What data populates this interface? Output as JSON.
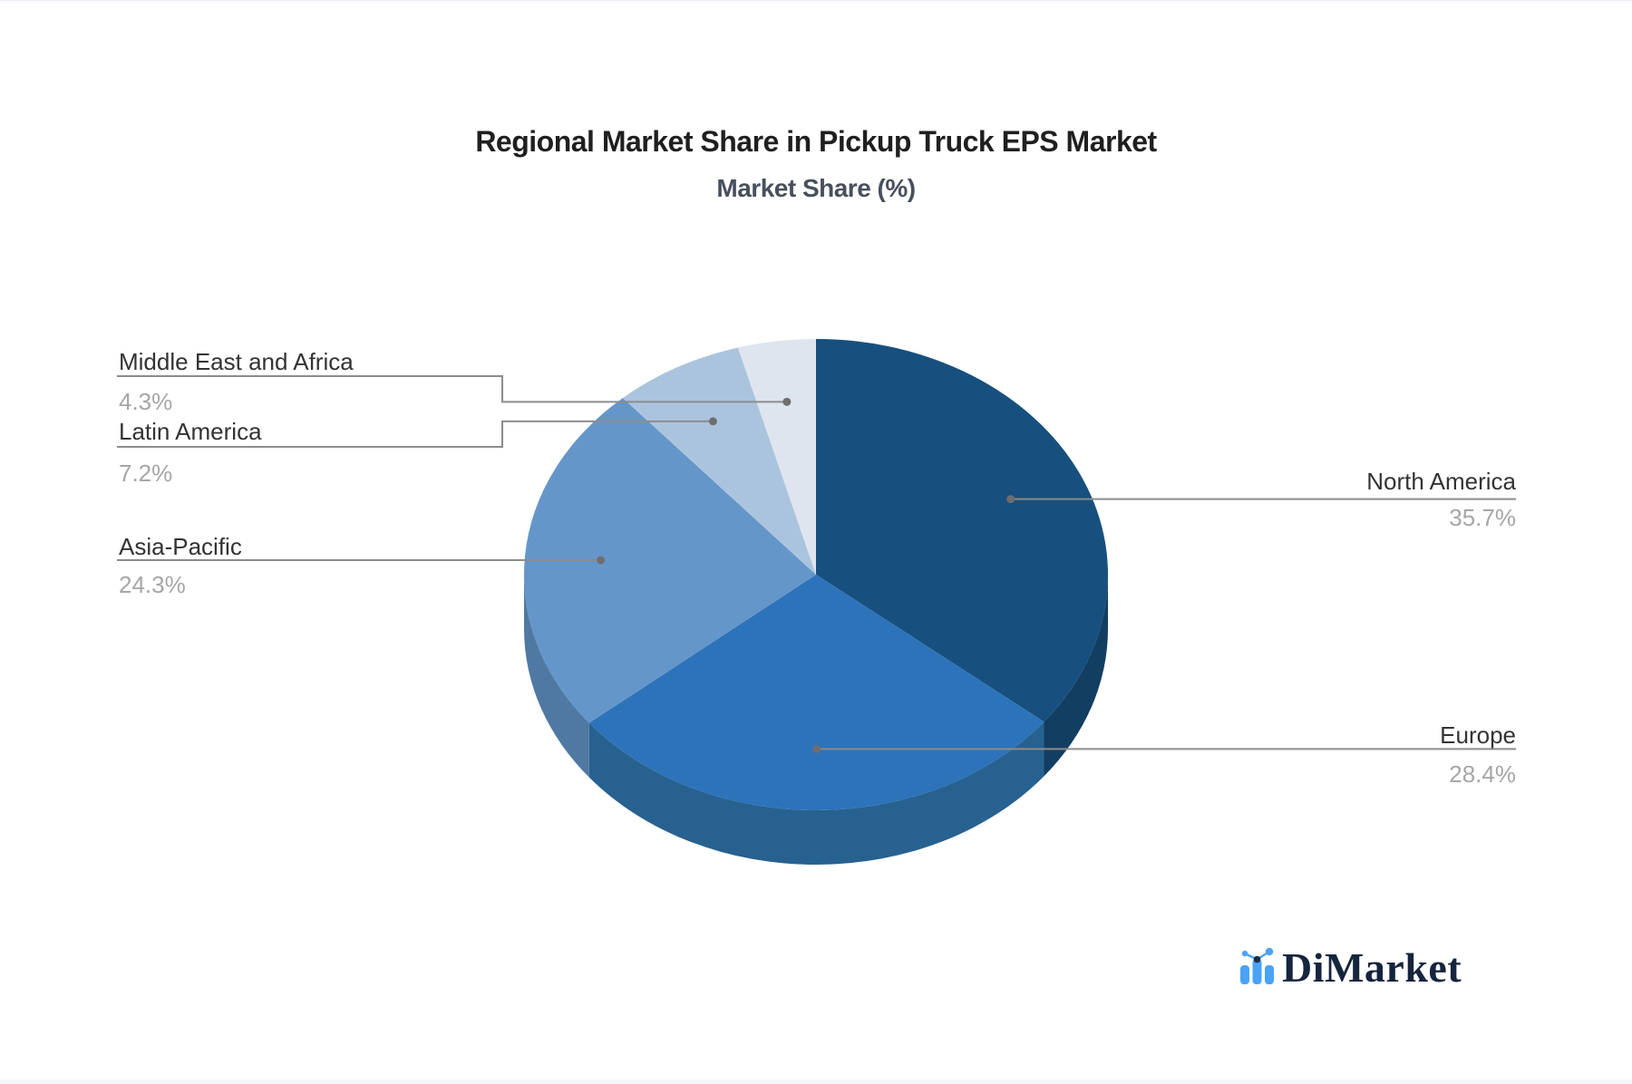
{
  "chart_data": {
    "type": "pie",
    "style": "3d",
    "title": "Regional Market Share in Pickup Truck EPS Market",
    "subtitle": "Market Share (%)",
    "unit": "%",
    "legend": "none",
    "start_angle_deg": 90,
    "direction": "clockwise",
    "label_format": "name above line, percent below line",
    "slices": [
      {
        "label": "North America",
        "value": 35.7,
        "pct_label": "35.7%",
        "color": "#17507e",
        "rim_color": "#123e62",
        "label_side": "right"
      },
      {
        "label": "Europe",
        "value": 28.4,
        "pct_label": "28.4%",
        "color": "#2d73ba",
        "rim_color": "#27618f",
        "label_side": "right"
      },
      {
        "label": "Asia-Pacific",
        "value": 24.3,
        "pct_label": "24.3%",
        "color": "#6596ca",
        "rim_color": "#4f79a3",
        "label_side": "left"
      },
      {
        "label": "Latin America",
        "value": 7.2,
        "pct_label": "7.2%",
        "color": "#abc4de",
        "rim_color": "#8ba6c2",
        "label_side": "left"
      },
      {
        "label": "Middle East and Africa",
        "value": 4.3,
        "pct_label": "4.3%",
        "color": "#dee5ef",
        "rim_color": "#bcc6d4",
        "label_side": "left"
      }
    ],
    "leader_line_color": "#8c8c8c",
    "leader_dot_color": "#6e6e6e",
    "label_name_color": "#333333",
    "label_pct_color": "#a6a6a6"
  },
  "logo": {
    "text": "DiMarket",
    "text_color": "#16243d",
    "bar_color": "#4aa3f7",
    "mid_dot_color": "#1d2b45"
  }
}
